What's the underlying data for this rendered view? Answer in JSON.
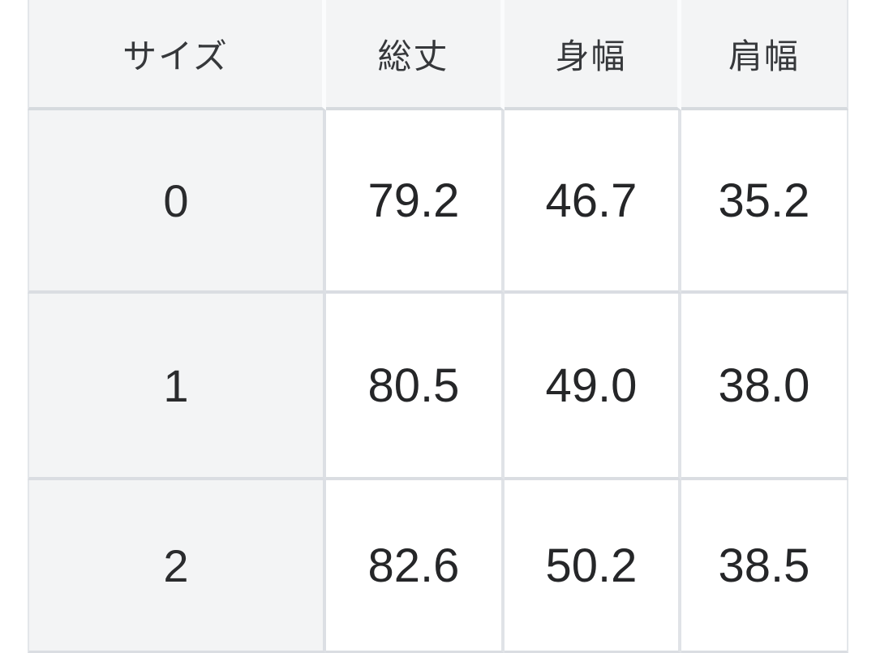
{
  "size_chart": {
    "headers": [
      "サイズ",
      "総丈",
      "身幅",
      "肩幅"
    ],
    "rows": [
      {
        "size": "0",
        "total_length": "79.2",
        "body_width": "46.7",
        "shoulder_width": "35.2"
      },
      {
        "size": "1",
        "total_length": "80.5",
        "body_width": "49.0",
        "shoulder_width": "38.0"
      },
      {
        "size": "2",
        "total_length": "82.6",
        "body_width": "50.2",
        "shoulder_width": "38.5"
      }
    ]
  },
  "chart_data": {
    "type": "table",
    "title": "",
    "columns": [
      "サイズ",
      "総丈",
      "身幅",
      "肩幅"
    ],
    "rows": [
      [
        "0",
        "79.2",
        "46.7",
        "35.2"
      ],
      [
        "1",
        "80.5",
        "49.0",
        "38.0"
      ],
      [
        "2",
        "82.6",
        "50.2",
        "38.5"
      ]
    ]
  },
  "colors": {
    "page_background": "#ffffff",
    "header_background": "#f3f4f5",
    "cell_background": "#ffffff",
    "grid_border": "#dcdfe4",
    "header_separator": "#fbfcfd",
    "header_text": "#36383b",
    "value_text": "#252628"
  }
}
